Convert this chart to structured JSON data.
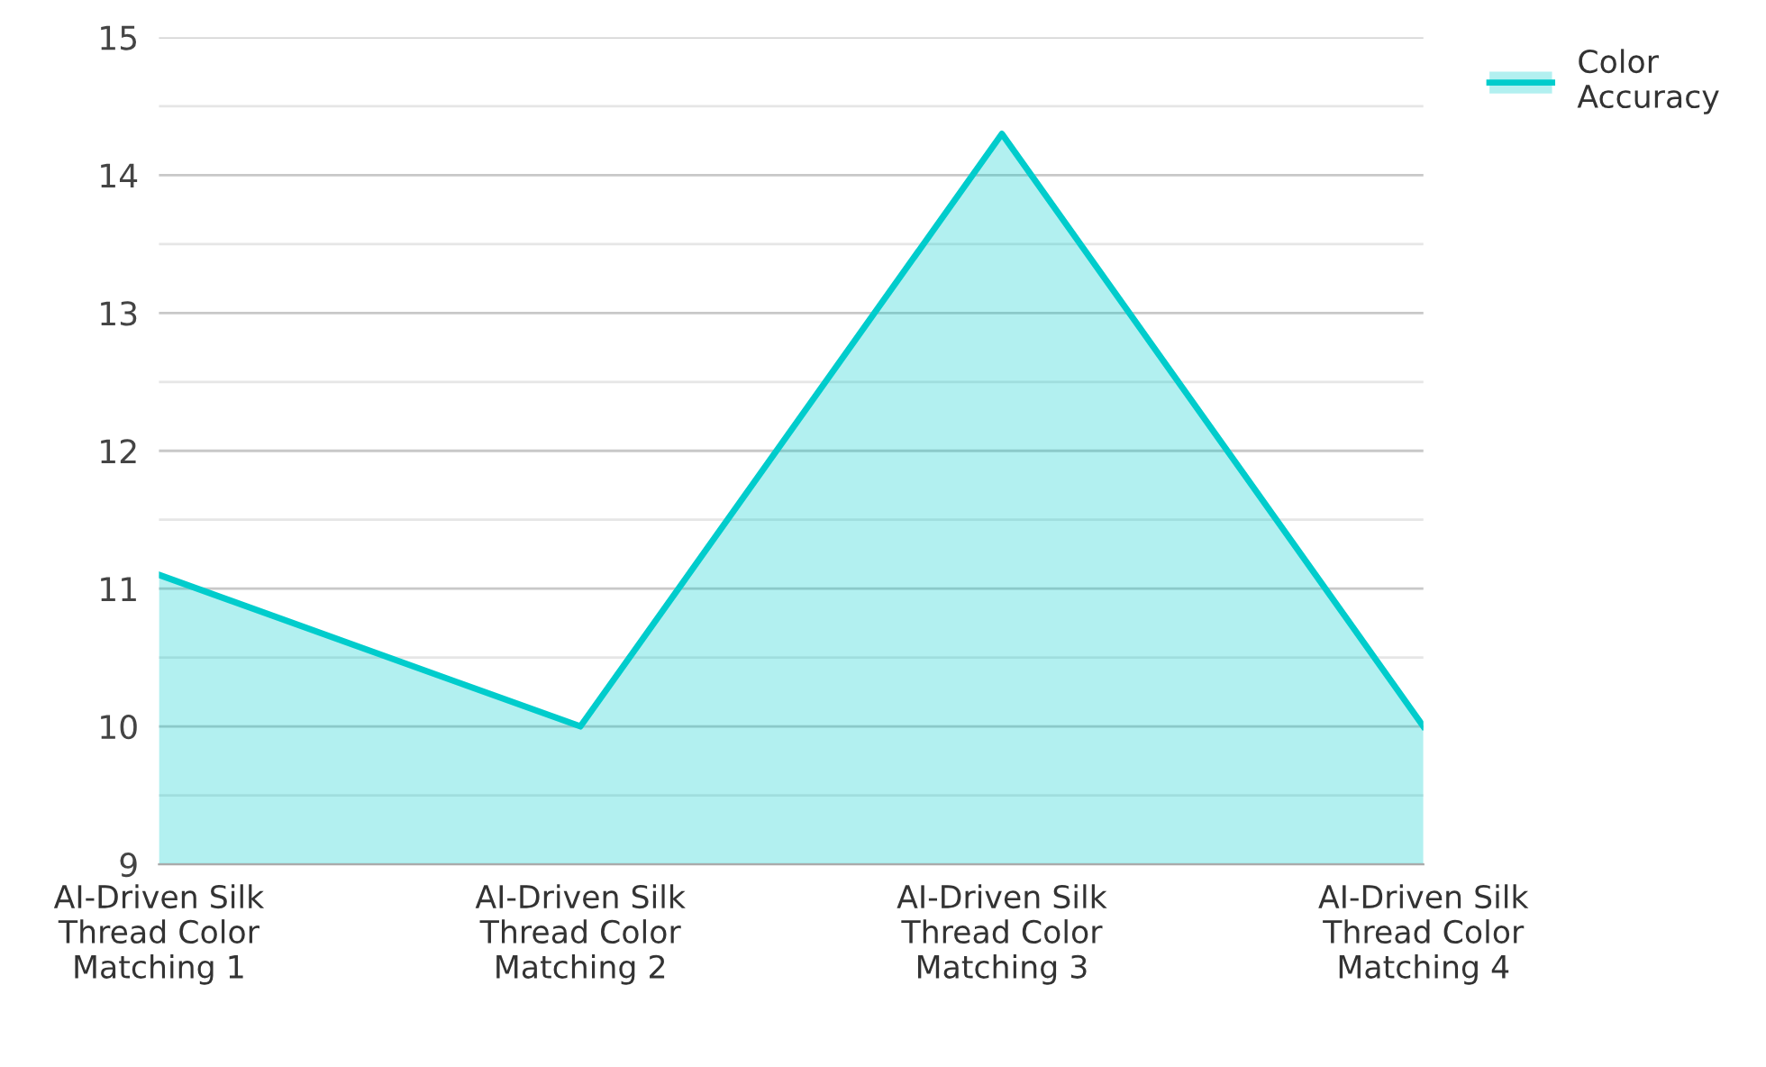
{
  "chart_data": {
    "type": "area",
    "categories": [
      "AI-Driven Silk\nThread Color\nMatching 1",
      "AI-Driven Silk\nThread Color\nMatching 2",
      "AI-Driven Silk\nThread Color\nMatching 3",
      "AI-Driven Silk\nThread Color\nMatching 4"
    ],
    "series": [
      {
        "name": "Color\nAccuracy",
        "color": "#00cccc",
        "values": [
          11.1,
          10,
          14.3,
          10
        ]
      }
    ],
    "ylim": [
      9,
      15
    ],
    "yticks": [
      9,
      10,
      11,
      12,
      13,
      14,
      15
    ],
    "grid": "y",
    "legend": "top right",
    "marker": "none",
    "line_style": "solid"
  }
}
